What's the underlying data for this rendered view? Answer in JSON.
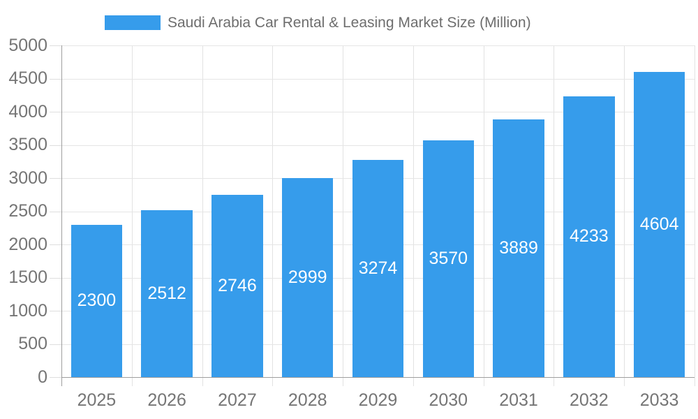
{
  "chart_data": {
    "type": "bar",
    "title": "Saudi Arabia Car Rental & Leasing Market Size (Million)",
    "categories": [
      "2025",
      "2026",
      "2027",
      "2028",
      "2029",
      "2030",
      "2031",
      "2032",
      "2033"
    ],
    "values": [
      2300,
      2512,
      2746,
      2999,
      3274,
      3570,
      3889,
      4233,
      4604
    ],
    "series": [
      {
        "name": "Saudi Arabia Car Rental & Leasing Market Size (Million)",
        "values": [
          2300,
          2512,
          2746,
          2999,
          3274,
          3570,
          3889,
          4233,
          4604
        ]
      }
    ],
    "xlabel": "",
    "ylabel": "",
    "ylim": [
      0,
      5000
    ],
    "ytick_step": 500,
    "ytick_labels": [
      "0",
      "500",
      "1000",
      "1500",
      "2000",
      "2500",
      "3000",
      "3500",
      "4000",
      "4500",
      "5000"
    ],
    "grid": true,
    "legend_position": "top",
    "value_labels": "inside-center-white",
    "colors": {
      "bar": "#369ceb",
      "bar_value_label": "#ffffff",
      "axis_text": "#757575",
      "legend_text": "#6e6e6e",
      "gridline": "#e5e5e5",
      "axis_line": "#9e9e9e",
      "background": "#ffffff"
    }
  }
}
